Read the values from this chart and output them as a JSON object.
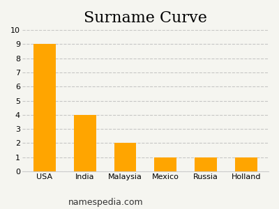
{
  "title": "Surname Curve",
  "categories": [
    "USA",
    "India",
    "Malaysia",
    "Mexico",
    "Russia",
    "Holland"
  ],
  "values": [
    9,
    4,
    2,
    1,
    1,
    1
  ],
  "bar_color": "#FFA500",
  "ylim": [
    0,
    10
  ],
  "yticks": [
    0,
    1,
    2,
    3,
    4,
    5,
    6,
    7,
    8,
    9,
    10
  ],
  "grid_color": "#bbbbbb",
  "grid_style": "--",
  "grid_alpha": 0.8,
  "background_color": "#f5f5f0",
  "title_fontsize": 16,
  "tick_fontsize": 8,
  "watermark": "namespedia.com",
  "watermark_fontsize": 9
}
